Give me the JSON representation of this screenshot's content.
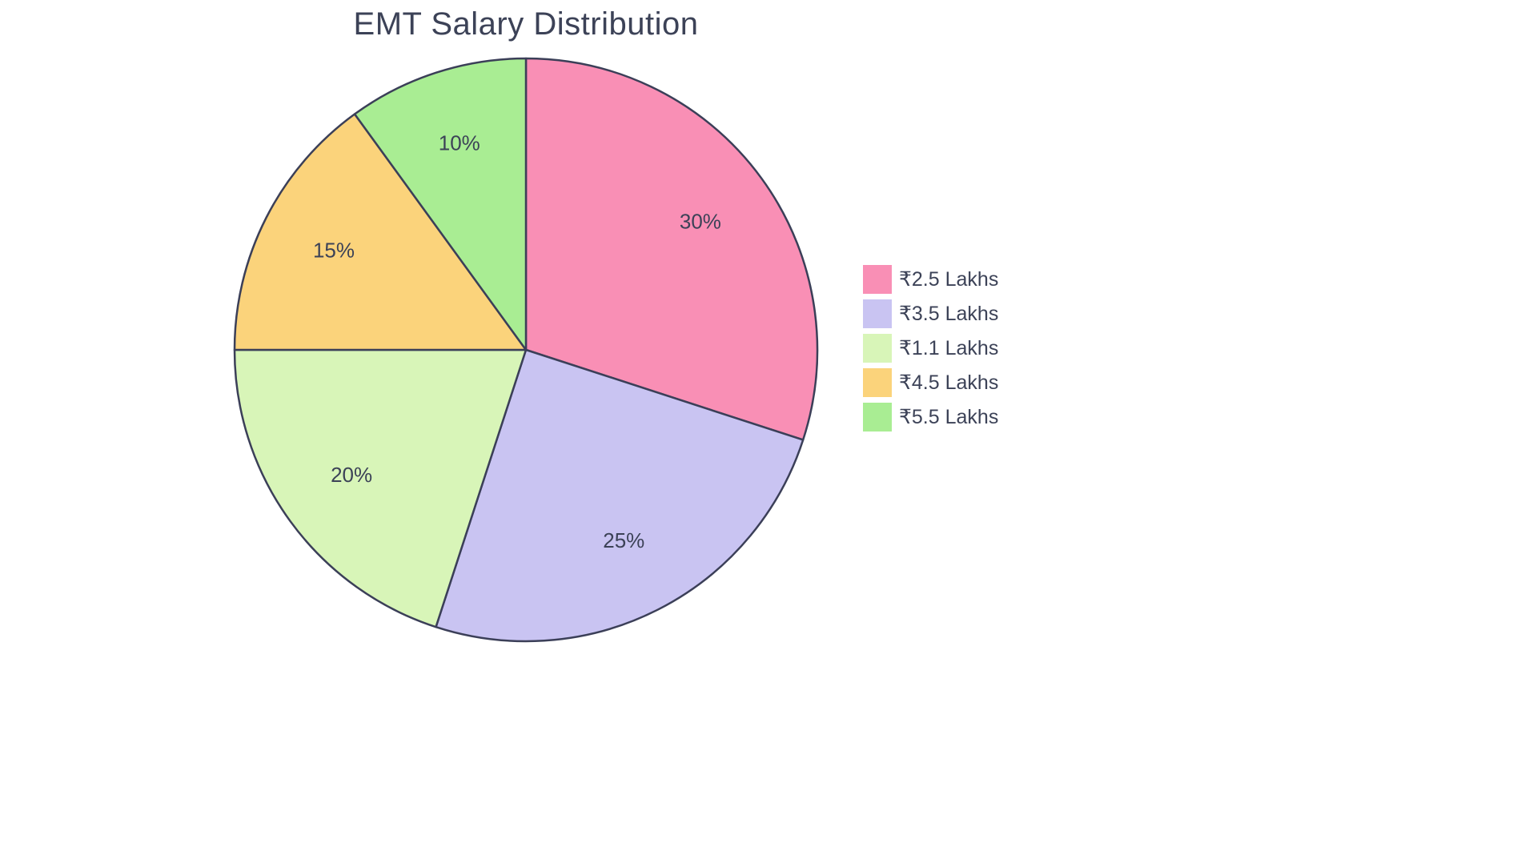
{
  "chart_data": {
    "type": "pie",
    "title": "EMT Salary Distribution",
    "labels": [
      "₹2.5 Lakhs",
      "₹3.5 Lakhs",
      "₹1.1 Lakhs",
      "₹4.5 Lakhs",
      "₹5.5 Lakhs"
    ],
    "values": [
      30,
      25,
      20,
      15,
      10
    ],
    "percent_labels": [
      "30%",
      "25%",
      "20%",
      "15%",
      "10%"
    ],
    "colors": [
      "#F98FB5",
      "#C9C4F2",
      "#D8F5B8",
      "#FBD37B",
      "#A9ED93"
    ],
    "outline_color": "#3B3F58",
    "text_color": "#3C4257",
    "start_angle_deg": -90,
    "direction": "clockwise",
    "legend_position": "right",
    "background": "#FFFFFF"
  }
}
